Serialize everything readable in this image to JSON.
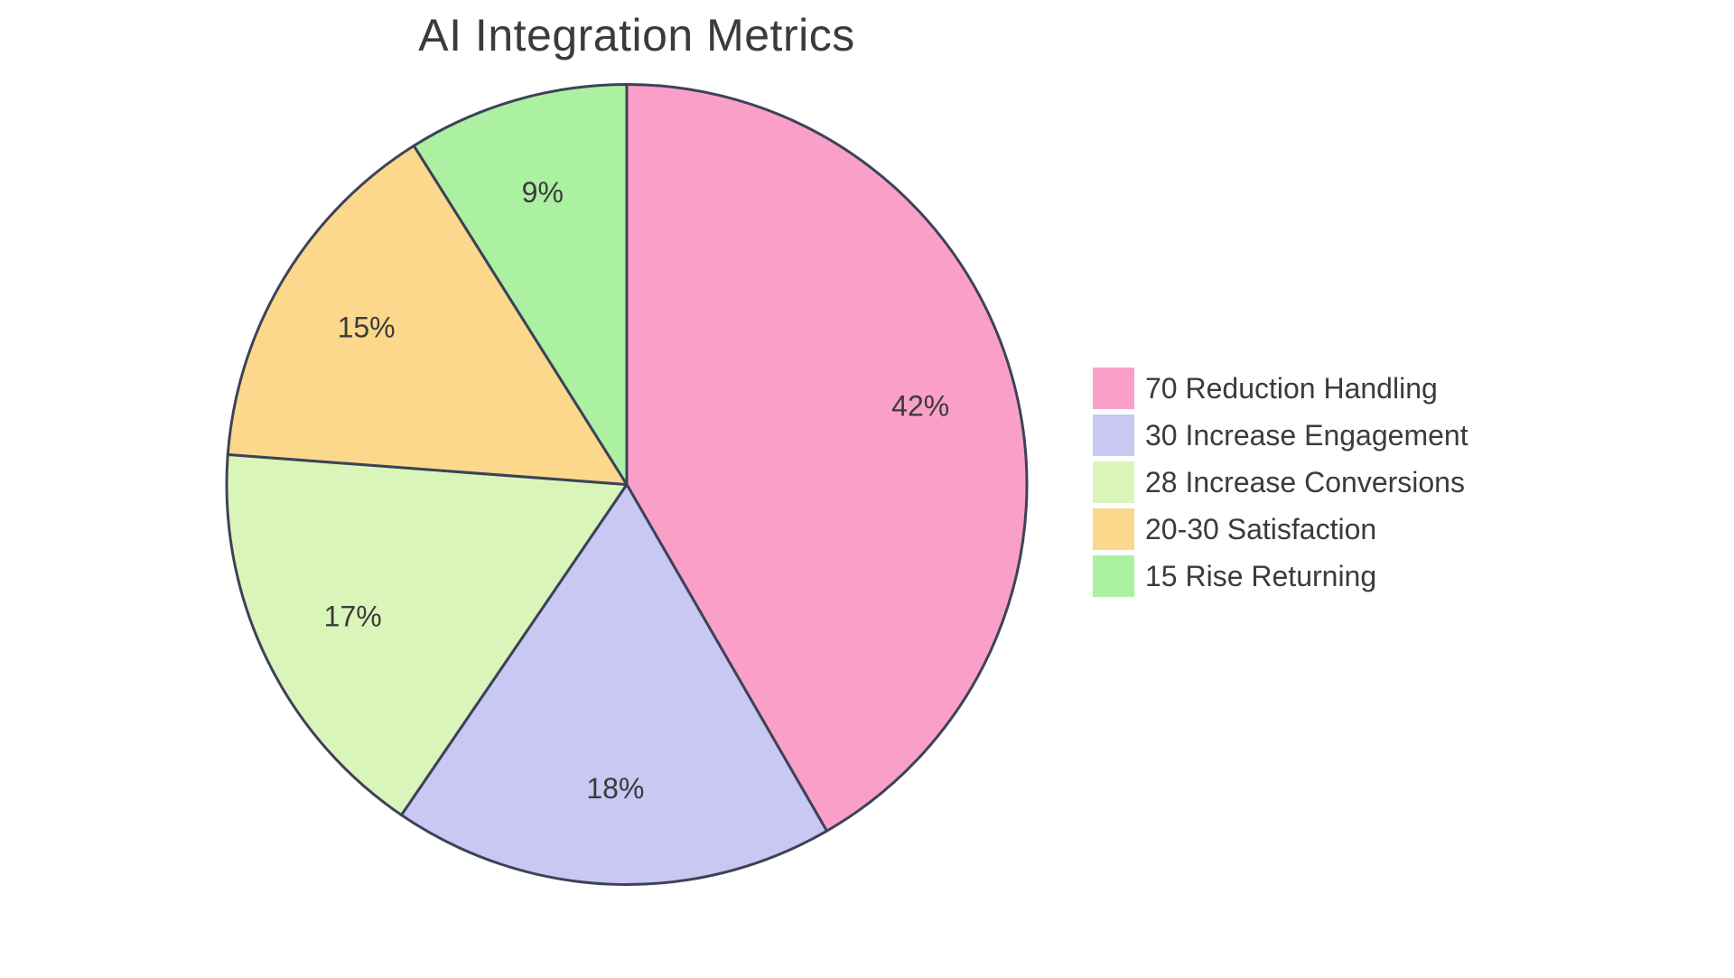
{
  "chart_data": {
    "type": "pie",
    "title": "AI Integration Metrics",
    "slices": [
      {
        "label": "70 Reduction Handling",
        "value": 70,
        "percent_label": "42%",
        "color": "#FAA0C8"
      },
      {
        "label": "30 Increase Engagement",
        "value": 30,
        "percent_label": "18%",
        "color": "#C8C8F3"
      },
      {
        "label": "28 Increase Conversions",
        "value": 28,
        "percent_label": "17%",
        "color": "#DAF5B9"
      },
      {
        "label": "20-30 Satisfaction",
        "value": 25,
        "percent_label": "15%",
        "color": "#FBD88B"
      },
      {
        "label": "15 Rise Returning",
        "value": 15,
        "percent_label": "9%",
        "color": "#ACF0A2"
      }
    ],
    "start_angle_deg": 0,
    "direction": "clockwise",
    "legend_position": "right",
    "stroke_color": "#3D4258",
    "text_color": "#3B3B3B",
    "background": "#FFFFFF"
  }
}
